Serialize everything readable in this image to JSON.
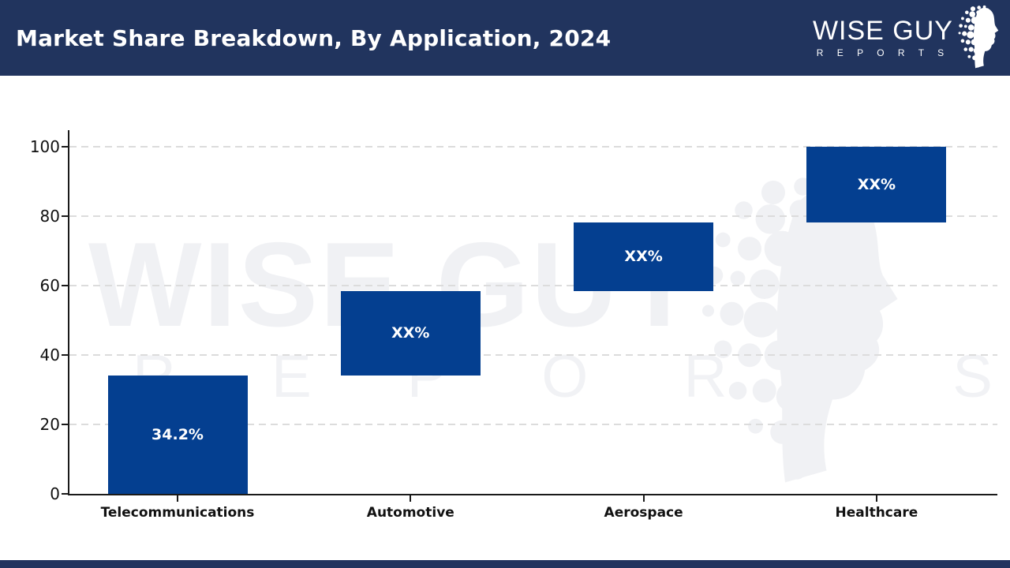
{
  "header": {
    "title": "Market Share Breakdown, By Application, 2024",
    "logo": {
      "line1": "WISE GUY",
      "line2": "R E P O R T S"
    }
  },
  "watermark": {
    "line1": "WISE GUY",
    "line2": "R E P O R T S"
  },
  "chart_data": {
    "type": "bar",
    "subtype": "waterfall",
    "title": "Market Share Breakdown, By Application, 2024",
    "categories": [
      "Telecommunications",
      "Automotive",
      "Aerospace",
      "Healthcare"
    ],
    "segments": [
      {
        "category": "Telecommunications",
        "start": 0,
        "end": 34.2,
        "label": "34.2%"
      },
      {
        "category": "Automotive",
        "start": 34.2,
        "end": 58.5,
        "label": "XX%"
      },
      {
        "category": "Aerospace",
        "start": 58.5,
        "end": 78.2,
        "label": "XX%"
      },
      {
        "category": "Healthcare",
        "start": 78.2,
        "end": 100,
        "label": "XX%"
      }
    ],
    "ylim": [
      0,
      105
    ],
    "yticks": [
      0,
      20,
      40,
      60,
      80,
      100
    ],
    "xlabel": "",
    "ylabel": "",
    "grid": "horizontal-dashed",
    "legend": "none",
    "bar_color": "#043f90",
    "bar_label_color": "#ffffff",
    "header_bg_color": "#21345e",
    "grid_color": "#dcdcdc",
    "watermark_color": "#f0f1f4"
  }
}
